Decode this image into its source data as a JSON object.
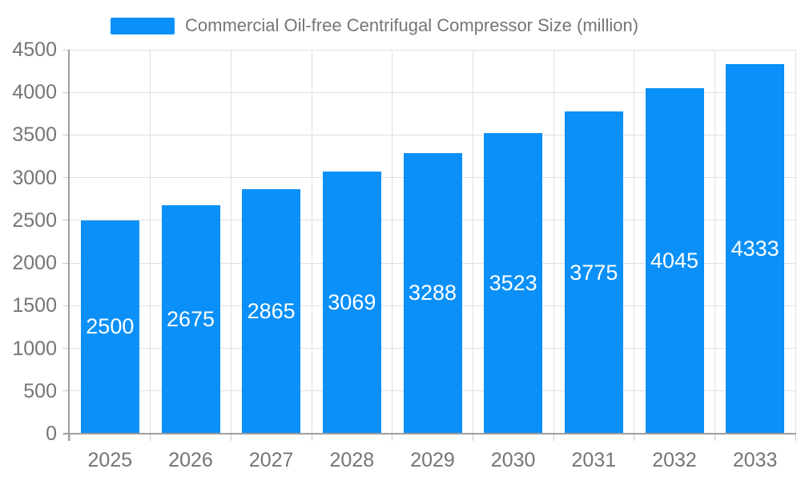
{
  "chart_data": {
    "type": "bar",
    "title": "Commercial Oil-free Centrifugal Compressor Size (million)",
    "categories": [
      "2025",
      "2026",
      "2027",
      "2028",
      "2029",
      "2030",
      "2031",
      "2032",
      "2033"
    ],
    "values": [
      2500,
      2675,
      2865,
      3069,
      3288,
      3523,
      3775,
      4045,
      4333
    ],
    "series": [
      {
        "name": "Commercial Oil-free Centrifugal Compressor Size (million)",
        "values": [
          2500,
          2675,
          2865,
          3069,
          3288,
          3523,
          3775,
          4045,
          4333
        ]
      }
    ],
    "xlabel": "",
    "ylabel": "",
    "ylim": [
      0,
      4500
    ],
    "yticks": [
      0,
      500,
      1000,
      1500,
      2000,
      2500,
      3000,
      3500,
      4000,
      4500
    ],
    "grid": true,
    "legend_position": "top",
    "bar_value_labels": "inside-center"
  },
  "colors": {
    "bar": "#0a90f8",
    "title_text": "#757575",
    "axis_label": "#757575",
    "gridline": "#e0e0e0",
    "axis_line": "#9e9e9e",
    "tick_mark": "#c8c8c8",
    "bar_label": "#ffffff",
    "background": "#ffffff"
  }
}
